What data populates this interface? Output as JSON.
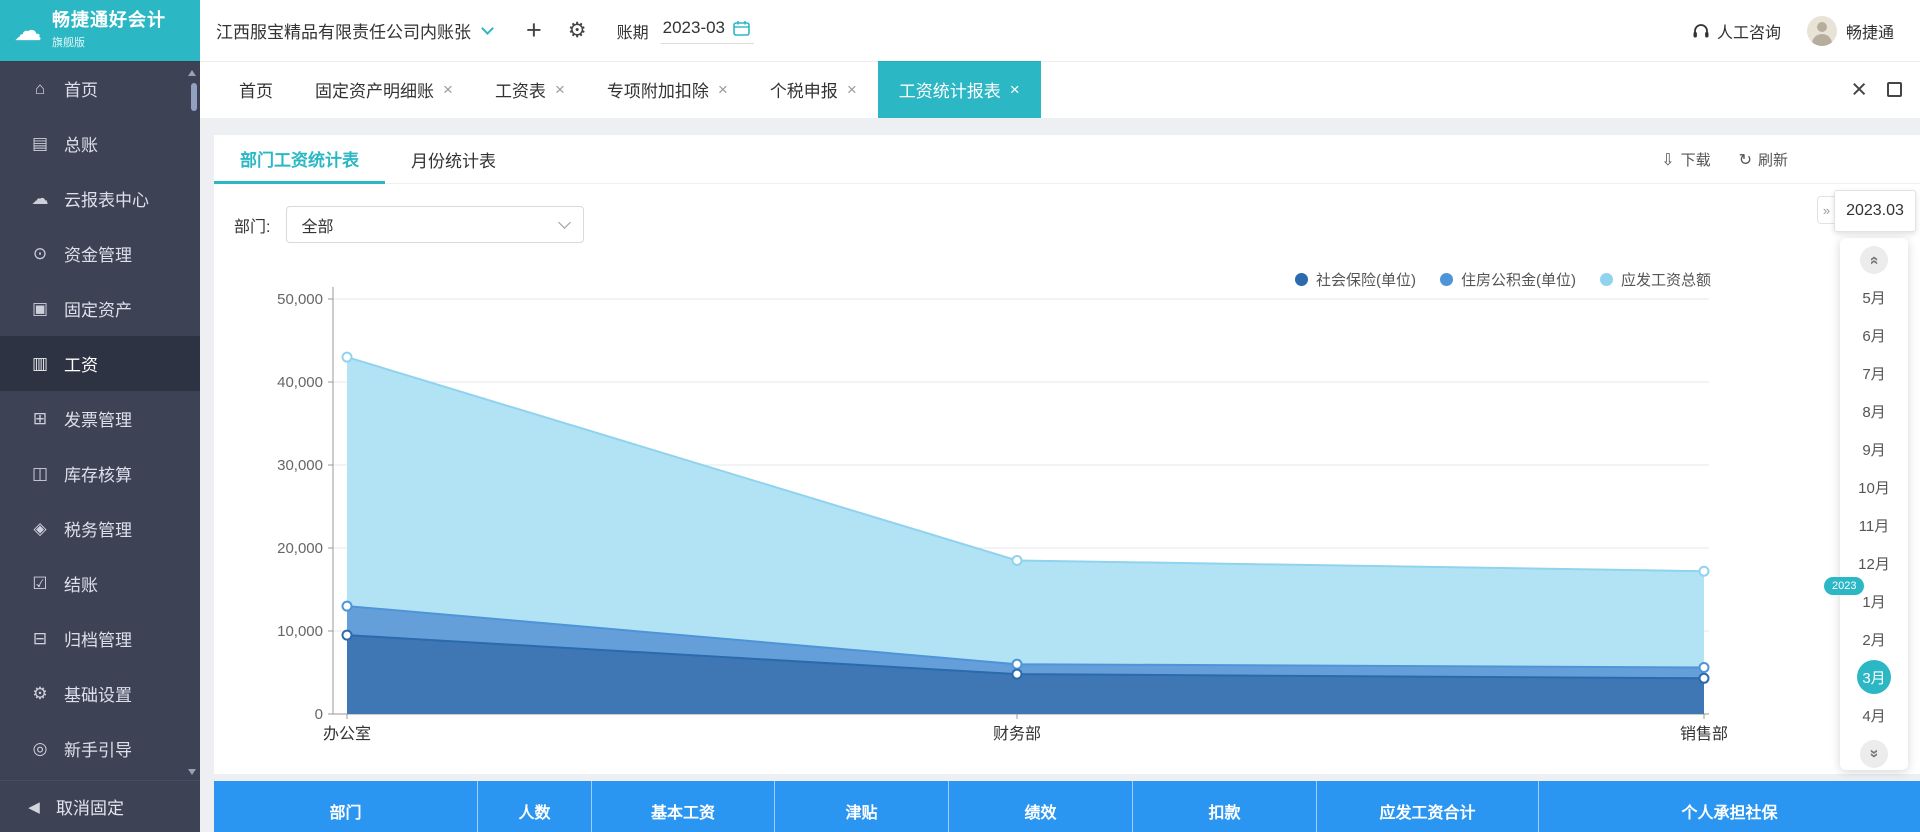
{
  "accent_color": "#2cb7c5",
  "header": {
    "logo_title": "畅捷通好会计",
    "logo_badge": "旗舰版",
    "company_selector": "江西服宝精品有限责任公司内账张",
    "add_label": "+",
    "period_label": "账期",
    "period_value": "2023-03",
    "support_label": "人工咨询",
    "user_name": "畅捷通"
  },
  "sidebar": {
    "items": [
      {
        "id": "home",
        "label": "首页",
        "icon": "home-icon",
        "glyph": "⌂"
      },
      {
        "id": "general-ledger",
        "label": "总账",
        "icon": "ledger-icon",
        "glyph": "▤"
      },
      {
        "id": "cloud-reports",
        "label": "云报表中心",
        "icon": "cloud-report-icon",
        "glyph": "☁"
      },
      {
        "id": "funds",
        "label": "资金管理",
        "icon": "funds-icon",
        "glyph": "⊙"
      },
      {
        "id": "fixed-assets",
        "label": "固定资产",
        "icon": "fixed-asset-icon",
        "glyph": "▣"
      },
      {
        "id": "salary",
        "label": "工资",
        "icon": "salary-icon",
        "glyph": "▥",
        "active": true
      },
      {
        "id": "invoices",
        "label": "发票管理",
        "icon": "invoice-icon",
        "glyph": "⊞"
      },
      {
        "id": "inventory",
        "label": "库存核算",
        "icon": "inventory-icon",
        "glyph": "◫"
      },
      {
        "id": "tax",
        "label": "税务管理",
        "icon": "tax-icon",
        "glyph": "◈"
      },
      {
        "id": "closing",
        "label": "结账",
        "icon": "closing-icon",
        "glyph": "☑"
      },
      {
        "id": "archive",
        "label": "归档管理",
        "icon": "archive-icon",
        "glyph": "⊟"
      },
      {
        "id": "settings",
        "label": "基础设置",
        "icon": "settings-gear-icon",
        "glyph": "⚙"
      },
      {
        "id": "guide",
        "label": "新手引导",
        "icon": "guide-icon",
        "glyph": "◎"
      }
    ],
    "pin_label": "取消固定"
  },
  "tabs": [
    {
      "id": "home",
      "label": "首页",
      "closable": false
    },
    {
      "id": "fixed-asset-detail",
      "label": "固定资产明细账",
      "closable": true
    },
    {
      "id": "salary-sheet",
      "label": "工资表",
      "closable": true
    },
    {
      "id": "special-deduction",
      "label": "专项附加扣除",
      "closable": true
    },
    {
      "id": "income-tax",
      "label": "个税申报",
      "closable": true
    },
    {
      "id": "salary-report",
      "label": "工资统计报表",
      "closable": true,
      "active": true
    }
  ],
  "report": {
    "tabs": [
      {
        "id": "department",
        "label": "部门工资统计表",
        "active": true
      },
      {
        "id": "monthly",
        "label": "月份统计表"
      }
    ],
    "download_label": "下载",
    "refresh_label": "刷新",
    "filter_label": "部门:",
    "filter_value": "全部"
  },
  "chart_data": {
    "type": "area",
    "title": "",
    "categories": [
      "办公室",
      "财务部",
      "销售部"
    ],
    "series": [
      {
        "name": "社会保险(单位)",
        "color": "#2a6aad",
        "fill": "#3e77b4",
        "values": [
          9500,
          4800,
          4300
        ]
      },
      {
        "name": "住房公积金(单位)",
        "color": "#4f94d8",
        "fill": "#649fda",
        "values": [
          13000,
          6000,
          5600
        ]
      },
      {
        "name": "应发工资总额",
        "color": "#8fd3ee",
        "fill": "#b2e3f5",
        "values": [
          43000,
          18500,
          17200
        ]
      }
    ],
    "ylim": [
      0,
      50000
    ],
    "yticks": [
      "0",
      "10,000",
      "20,000",
      "30,000",
      "40,000",
      "50,000"
    ],
    "legend_position": "top-right",
    "grid": true
  },
  "table": {
    "columns": [
      "部门",
      "人数",
      "基本工资",
      "津贴",
      "绩效",
      "扣款",
      "应发工资合计",
      "个人承担社保"
    ],
    "header_bg": "#2b96f1"
  },
  "month_panel": {
    "current": "2023.03",
    "collapse_glyph": "»",
    "year_badge": "2023",
    "months": [
      "5月",
      "6月",
      "7月",
      "8月",
      "9月",
      "10月",
      "11月",
      "12月",
      "1月",
      "2月",
      "3月",
      "4月"
    ],
    "active_month": "3月"
  }
}
